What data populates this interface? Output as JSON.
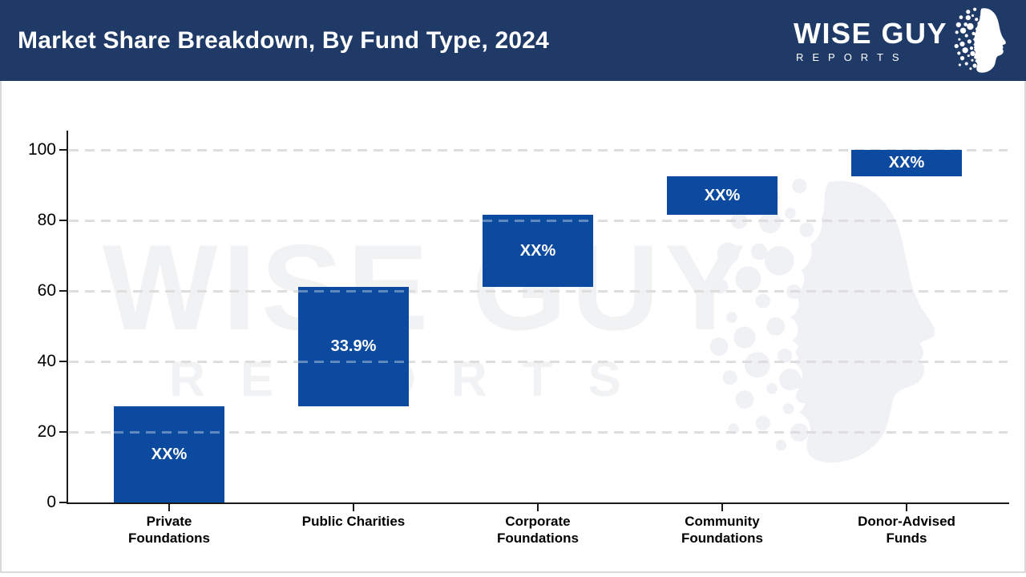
{
  "header": {
    "logo": {
      "line1": "WISE GUY",
      "line2": "REPORTS"
    }
  },
  "watermark": {
    "line1": "WISE GUY",
    "line2": "REPORTS"
  },
  "colors": {
    "header_bg": "#203a68",
    "bar": "#0b4a9f",
    "grid": "#dedede",
    "axis": "#1a1a1a",
    "bar_label": "#ffffff",
    "watermark": "#eff1f4"
  },
  "chart_data": {
    "type": "bar",
    "subtype": "waterfall",
    "title": "Market Share Breakdown, By Fund Type, 2024",
    "categories": [
      "Private\nFoundations",
      "Public Charities",
      "Corporate\nFoundations",
      "Community\nFoundations",
      "Donor-Advised\nFunds"
    ],
    "bars": [
      {
        "category": "Private Foundations",
        "start": 0,
        "end": 27.2,
        "value": 27.2,
        "label": "XX%"
      },
      {
        "category": "Public Charities",
        "start": 27.2,
        "end": 61.1,
        "value": 33.9,
        "label": "33.9%"
      },
      {
        "category": "Corporate Foundations",
        "start": 61.1,
        "end": 81.6,
        "value": 20.5,
        "label": "XX%"
      },
      {
        "category": "Community Foundations",
        "start": 81.6,
        "end": 92.4,
        "value": 10.8,
        "label": "XX%"
      },
      {
        "category": "Donor-Advised Funds",
        "start": 92.4,
        "end": 100,
        "value": 7.6,
        "label": "XX%"
      }
    ],
    "ylim": [
      0,
      100
    ],
    "yticks": [
      0,
      20,
      40,
      60,
      80,
      100
    ],
    "xlabel": "",
    "ylabel": "",
    "grid": "horizontal-dashed",
    "legend": "none"
  }
}
